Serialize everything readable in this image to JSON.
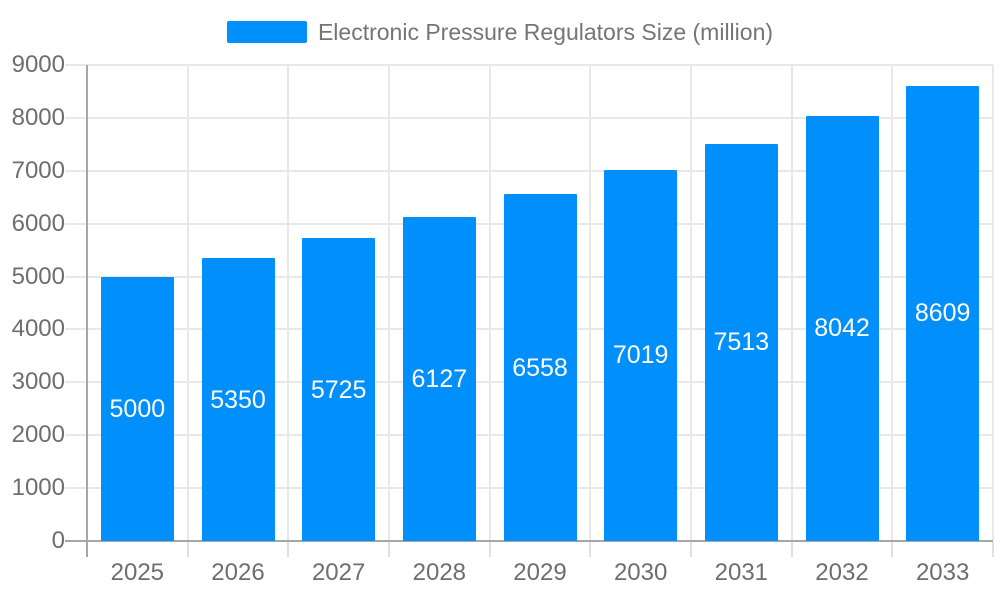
{
  "legend": {
    "label": "Electronic Pressure Regulators Size (million)"
  },
  "chart_data": {
    "type": "bar",
    "title": "Electronic Pressure Regulators Size (million)",
    "categories": [
      "2025",
      "2026",
      "2027",
      "2028",
      "2029",
      "2030",
      "2031",
      "2032",
      "2033"
    ],
    "series": [
      {
        "name": "Electronic Pressure Regulators Size (million)",
        "values": [
          5000,
          5350,
          5725,
          6127,
          6558,
          7019,
          7513,
          8042,
          8609
        ]
      }
    ],
    "data_labels": [
      "5000",
      "5350",
      "5725",
      "6127",
      "6558",
      "7019",
      "7513",
      "8042",
      "8609"
    ],
    "xlabel": "",
    "ylabel": "",
    "ylim": [
      0,
      9000
    ],
    "ytick_step": 1000,
    "ytick_labels": [
      "0",
      "1000",
      "2000",
      "3000",
      "4000",
      "5000",
      "6000",
      "7000",
      "8000",
      "9000"
    ],
    "grid": true,
    "legend_position": "top",
    "colors": {
      "bar": "#008ffb",
      "value_label": "#ffffff",
      "axis_line": "#a6a6a6",
      "gridline": "#e8e8e8",
      "tick": "#e0e0e0",
      "axis_label": "#6e6e6e",
      "legend_label": "#757575"
    }
  }
}
